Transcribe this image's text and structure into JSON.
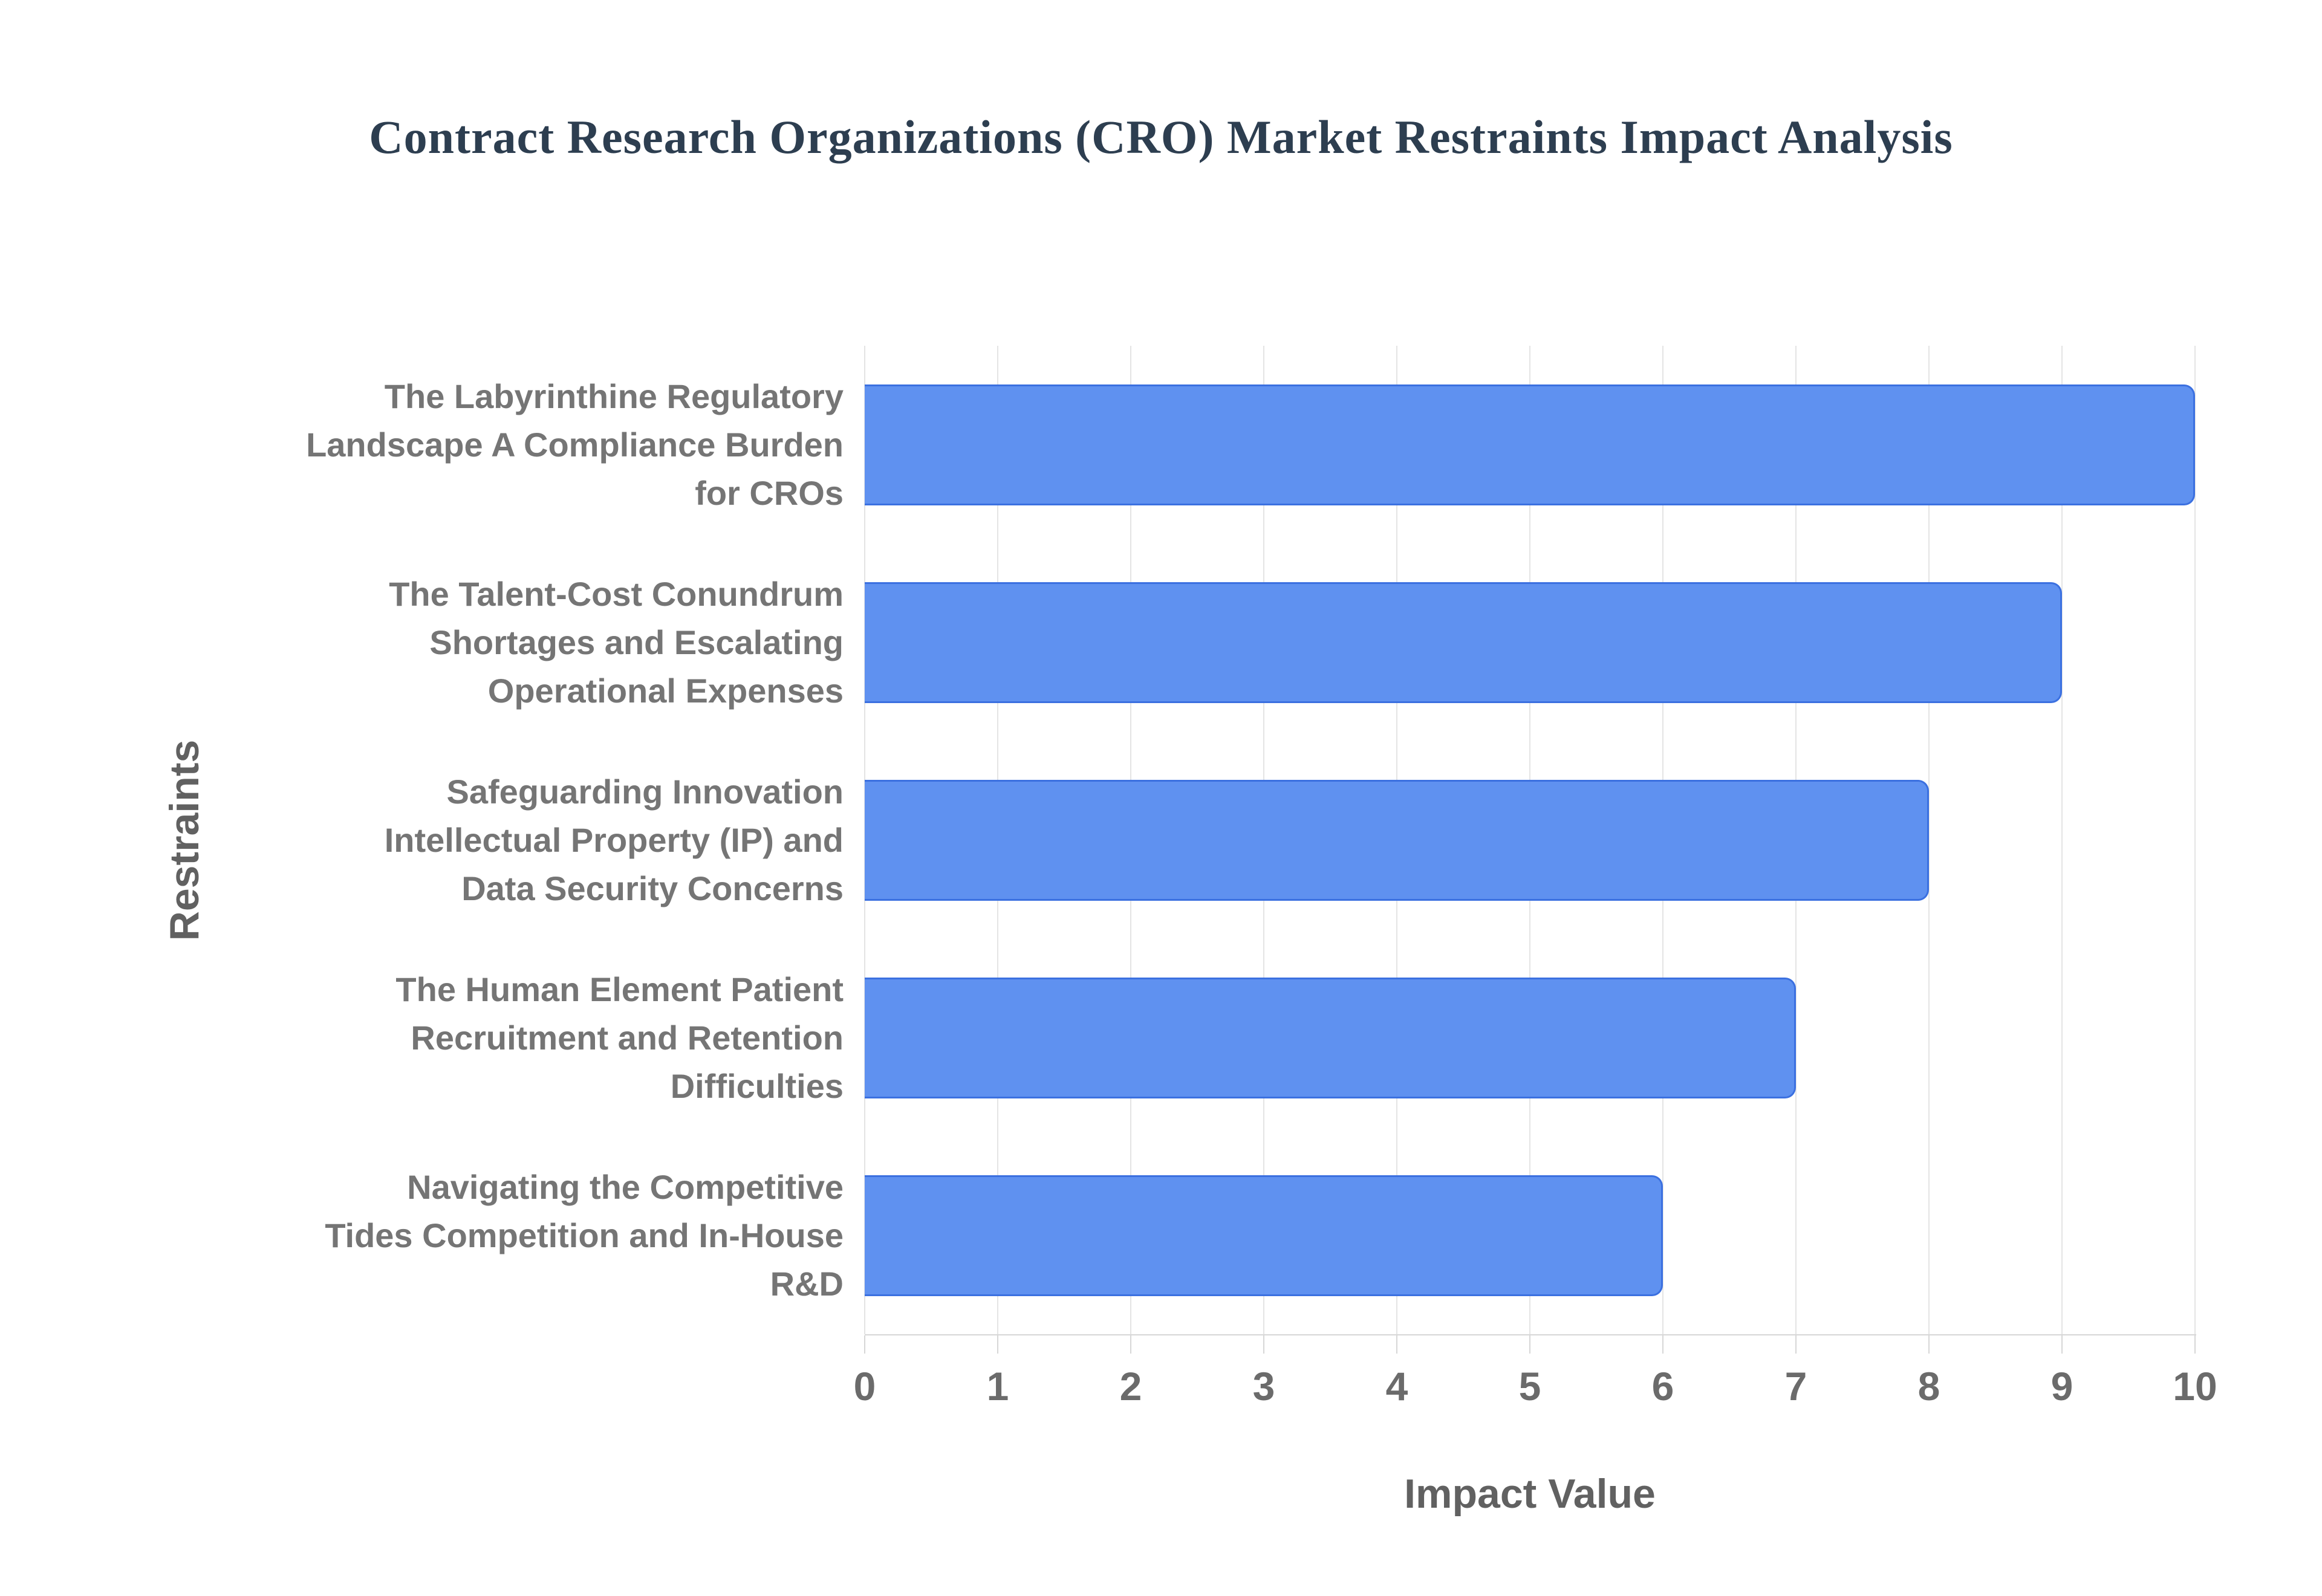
{
  "chart_data": {
    "type": "bar",
    "orientation": "horizontal",
    "title": "Contract Research Organizations (CRO) Market Restraints Impact Analysis",
    "categories": [
      "The Labyrinthine Regulatory\nLandscape A Compliance Burden\nfor CROs",
      "The Talent-Cost Conundrum\nShortages and Escalating\nOperational Expenses",
      "Safeguarding Innovation\nIntellectual Property (IP) and\nData Security Concerns",
      "The Human Element Patient\nRecruitment and Retention\nDifficulties",
      "Navigating the Competitive\nTides Competition and In-House\nR&D"
    ],
    "values": [
      10,
      9,
      8,
      7,
      6
    ],
    "xlabel": "Impact Value",
    "ylabel": "Restraints",
    "xlim": [
      0,
      10
    ],
    "xticks": [
      0,
      1,
      2,
      3,
      4,
      5,
      6,
      7,
      8,
      9,
      10
    ],
    "grid": "vertical",
    "legend": "none",
    "colors": {
      "bar_fill": "#5F91F0",
      "bar_border": "#3B70E0",
      "title_text": "#2D3E50",
      "category_text": "#757575",
      "axis_text": "#616161",
      "tick_text": "#6B6B6B",
      "gridline": "#E4E4E4",
      "axis_line": "#D7D7D7",
      "background": "#FFFFFF"
    }
  }
}
